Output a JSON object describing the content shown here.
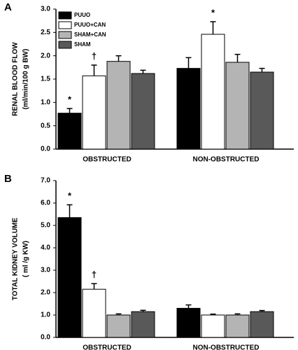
{
  "chart_data": [
    {
      "type": "bar",
      "panel_label": "A",
      "ylabel": [
        "RENAL BLOOD FLOW",
        "(ml/min/100 g BW)"
      ],
      "categories": [
        "OBSTRUCTED",
        "NON-OBSTRUCTED"
      ],
      "ylim": [
        0,
        3
      ],
      "yticks": [
        {
          "value": 0,
          "label": "0.0"
        },
        0.5,
        {
          "value": 1,
          "label": "1.0"
        },
        1.5,
        {
          "value": 2,
          "label": "2.0"
        },
        2.5,
        {
          "value": 3,
          "label": "3.0"
        }
      ],
      "legend": "upper left",
      "series": [
        {
          "name": "PUUO",
          "color": "#000000",
          "values": [
            0.77,
            1.73
          ],
          "errors": [
            0.1,
            0.23
          ]
        },
        {
          "name": "PUUO+CAN",
          "color": "#ffffff",
          "values": [
            1.57,
            2.46
          ],
          "errors": [
            0.23,
            0.27
          ]
        },
        {
          "name": "SHAM+CAN",
          "color": "#b4b4b4",
          "values": [
            1.88,
            1.86
          ],
          "errors": [
            0.12,
            0.17
          ]
        },
        {
          "name": "SHAM",
          "color": "#595959",
          "values": [
            1.62,
            1.65
          ],
          "errors": [
            0.07,
            0.08
          ]
        }
      ],
      "annotations": [
        {
          "text": "*",
          "series": 0,
          "category": 0
        },
        {
          "text": "†",
          "series": 1,
          "category": 0
        },
        {
          "text": "*",
          "series": 1,
          "category": 1
        }
      ]
    },
    {
      "type": "bar",
      "panel_label": "B",
      "ylabel": [
        "TOTAL KIDNEY VOLUME",
        "( ml /g KW)"
      ],
      "categories": [
        "OBSTRUCTED",
        "NON-OBSTRUCTED"
      ],
      "ylim": [
        0,
        7
      ],
      "yticks": [
        {
          "value": 0,
          "label": "0.0"
        },
        {
          "value": 1,
          "label": "1.0"
        },
        {
          "value": 2,
          "label": "2.0"
        },
        {
          "value": 3,
          "label": "3.0"
        },
        {
          "value": 4,
          "label": "4.0"
        },
        {
          "value": 5,
          "label": "5.0"
        },
        {
          "value": 6,
          "label": "6.0"
        },
        {
          "value": 7,
          "label": "7.0"
        }
      ],
      "series": [
        {
          "color": "#000000",
          "values": [
            5.35,
            1.3
          ],
          "errors": [
            0.57,
            0.15
          ]
        },
        {
          "color": "#ffffff",
          "values": [
            2.15,
            1.0
          ],
          "errors": [
            0.25,
            0.04
          ]
        },
        {
          "color": "#b4b4b4",
          "values": [
            1.0,
            1.0
          ],
          "errors": [
            0.05,
            0.05
          ]
        },
        {
          "color": "#595959",
          "values": [
            1.15,
            1.15
          ],
          "errors": [
            0.06,
            0.05
          ]
        }
      ],
      "annotations": [
        {
          "text": "*",
          "series": 0,
          "category": 0
        },
        {
          "text": "†",
          "series": 1,
          "category": 0
        }
      ]
    }
  ]
}
